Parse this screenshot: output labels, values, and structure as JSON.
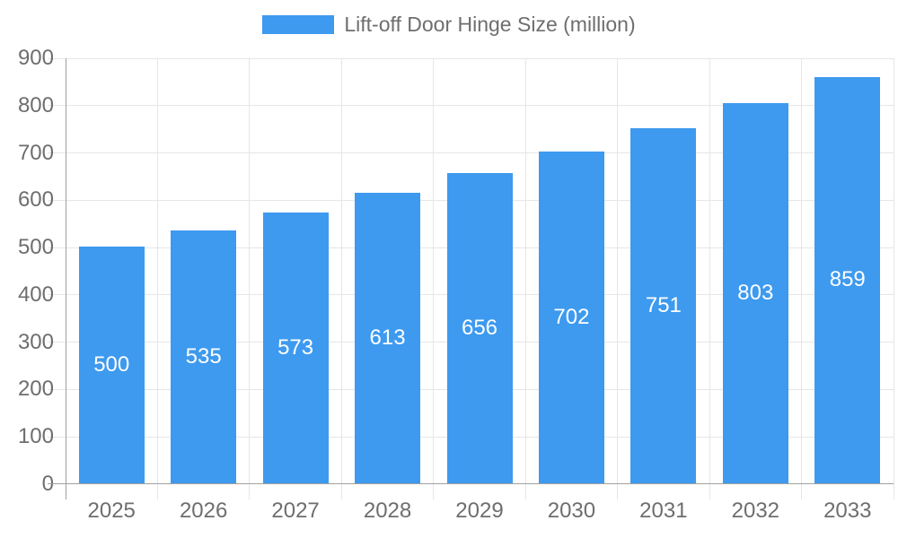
{
  "legend": {
    "series_label": "Lift-off Door Hinge Size (million)"
  },
  "chart_data": {
    "type": "bar",
    "title": "Lift-off Door Hinge Size (million)",
    "categories": [
      "2025",
      "2026",
      "2027",
      "2028",
      "2029",
      "2030",
      "2031",
      "2032",
      "2033"
    ],
    "values": [
      500,
      535,
      573,
      613,
      656,
      702,
      751,
      803,
      859
    ],
    "xlabel": "",
    "ylabel": "",
    "ylim": [
      0,
      900
    ],
    "ytick_step": 100,
    "ytick_labels": [
      "0",
      "100",
      "200",
      "300",
      "400",
      "500",
      "600",
      "700",
      "800",
      "900"
    ],
    "grid": true,
    "value_labels": "inside-center-white",
    "legend_position": "top-center",
    "colors": {
      "bar": "#3D9AEF",
      "value_label": "#ffffff",
      "axis_line": "#a0a0a0",
      "gridline": "#e6e6e6",
      "tick_label": "#6e6e6e",
      "legend_text": "#6e6e6e",
      "background": "#ffffff"
    }
  }
}
